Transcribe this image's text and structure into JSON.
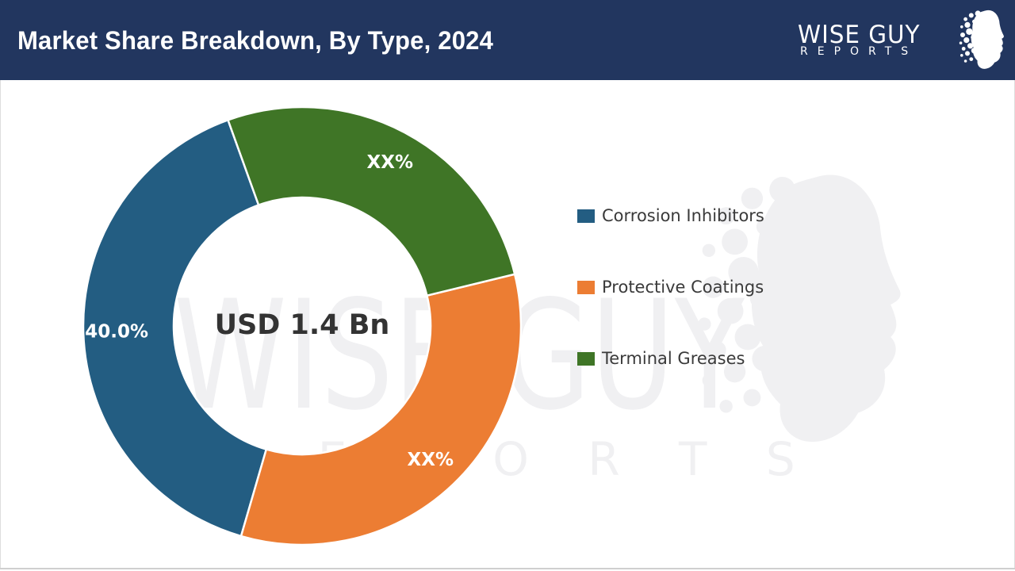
{
  "header": {
    "title": "Market Share Breakdown, By Type, 2024",
    "logo": {
      "name": "WISE GUY",
      "subtitle": "REPORTS"
    }
  },
  "watermark": {
    "line1": "WISE GUY",
    "line2": "R E P O R T S"
  },
  "chart_data": {
    "type": "donut",
    "title": "Market Share Breakdown, By Type, 2024",
    "center_label": "USD 1.4 Bn",
    "start_angle_deg": 109.8,
    "direction": "counterclockwise",
    "legend_position": "right",
    "segments": [
      {
        "name": "Corrosion Inhibitors",
        "value_pct": 40.0,
        "label": "40.0%",
        "color": "#235D82"
      },
      {
        "name": "Protective Coatings",
        "value_pct": 33.3,
        "label": "XX%",
        "color": "#EC7D33"
      },
      {
        "name": "Terminal Greases",
        "value_pct": 26.7,
        "label": "XX%",
        "color": "#3F7526"
      }
    ]
  }
}
